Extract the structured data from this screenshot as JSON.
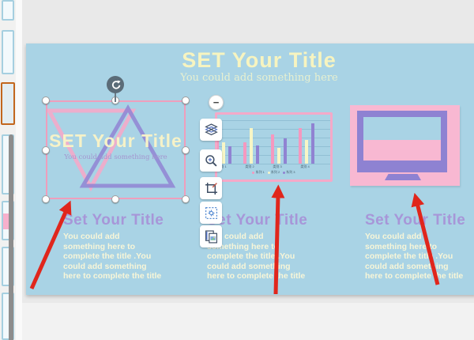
{
  "slide": {
    "title": "SET Your Title",
    "subtitle": "You could add something here"
  },
  "left_element": {
    "title": "SET Your Title",
    "subtitle": "You could add something here"
  },
  "toolbar": {
    "collapse_glyph": "−",
    "buttons": [
      "layers",
      "zoom-in",
      "crop",
      "selection-settings",
      "copy-as-image"
    ]
  },
  "chart_data": {
    "type": "bar",
    "title": "",
    "categories": [
      "类别 1",
      "类别 2",
      "类别 3",
      "类别 4"
    ],
    "series": [
      {
        "name": "系列 1",
        "color": "#f598bf",
        "values": [
          5.2,
          2.7,
          3.7,
          4.5
        ]
      },
      {
        "name": "系列 2",
        "color": "#f8f6c6",
        "values": [
          2.7,
          4.5,
          2.0,
          3.0
        ]
      },
      {
        "name": "系列 3",
        "color": "#9083d2",
        "values": [
          2.2,
          2.3,
          3.2,
          5.1
        ]
      }
    ],
    "ylim": [
      0,
      6
    ],
    "grid": true,
    "legend_position": "bottom"
  },
  "content_blocks": [
    {
      "heading": "Set Your Title",
      "body": "You could add\nsomething here to\ncomplete the title .You\ncould add something\nhere to complete the title"
    },
    {
      "heading": "Set Your Title",
      "body": "You could add\nsomething here to\ncomplete the title .You\ncould add something\nhere to complete the title"
    },
    {
      "heading": "Set Your Title",
      "body": "You could add\nsomething here to\ncomplete the title .You\ncould add something\nhere to complete the title"
    }
  ],
  "colors": {
    "slide_bg": "#a9d3e5",
    "pink": "#f7b0cc",
    "purple": "#9083d2",
    "pale_yellow": "#f7f4c0",
    "heading_purple": "#a796d8",
    "arrow_red": "#e0261c",
    "selection_pink": "#ef9ebc"
  }
}
